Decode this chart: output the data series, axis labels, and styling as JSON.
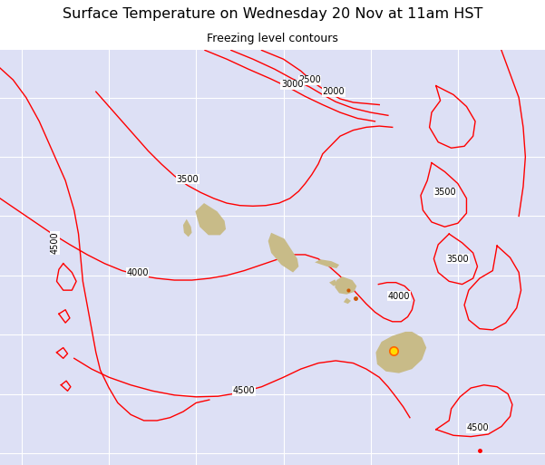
{
  "title": "Surface Temperature on Wednesday 20 Nov at 11am HST",
  "subtitle": "Freezing level contours",
  "ocean_color": "#dde0f5",
  "contour_color": "#ff0000",
  "grid_color": "#ffffff",
  "title_fontsize": 11.5,
  "subtitle_fontsize": 9,
  "contour_label_fontsize": 7,
  "xlim": [
    -164.5,
    -152.0
  ],
  "ylim": [
    17.8,
    24.8
  ],
  "figsize": [
    6.01,
    5.13
  ],
  "dpi": 100,
  "island_color": "#c8bb88",
  "marker_outer_color": "#ff6600",
  "marker_inner_color": "#ffee00"
}
